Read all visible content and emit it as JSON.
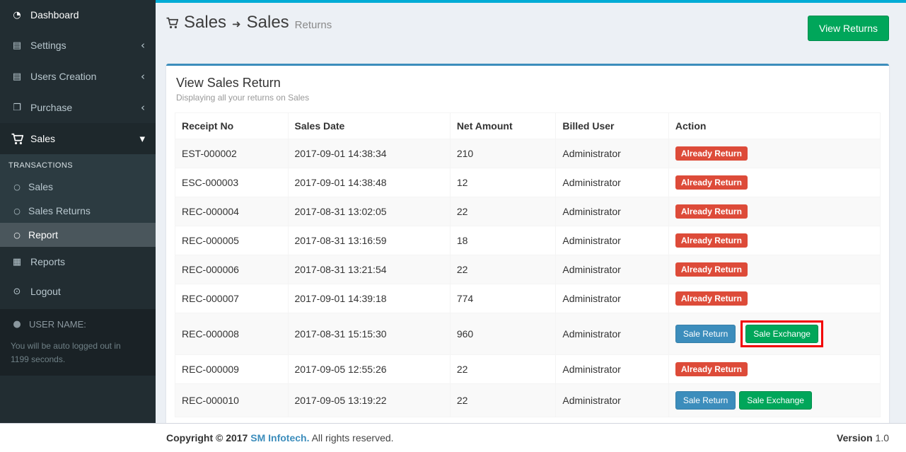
{
  "header": {
    "breadcrumb": {
      "section": "Sales",
      "arrow": "➜",
      "page": "Sales",
      "sub": "Returns"
    },
    "view_returns_button": "View Returns"
  },
  "panel": {
    "title": "View Sales Return",
    "subtitle": "Displaying all your returns on Sales"
  },
  "table": {
    "columns": [
      "Receipt No",
      "Sales Date",
      "Net Amount",
      "Billed User",
      "Action"
    ],
    "action_labels": {
      "already": "Already Return",
      "sale_return": "Sale Return",
      "sale_exchange": "Sale Exchange"
    },
    "rows": [
      {
        "receipt": "EST-000002",
        "date": "2017-09-01 14:38:34",
        "amount": "210",
        "user": "Administrator",
        "action": "already"
      },
      {
        "receipt": "ESC-000003",
        "date": "2017-09-01 14:38:48",
        "amount": "12",
        "user": "Administrator",
        "action": "already"
      },
      {
        "receipt": "REC-000004",
        "date": "2017-08-31 13:02:05",
        "amount": "22",
        "user": "Administrator",
        "action": "already"
      },
      {
        "receipt": "REC-000005",
        "date": "2017-08-31 13:16:59",
        "amount": "18",
        "user": "Administrator",
        "action": "already"
      },
      {
        "receipt": "REC-000006",
        "date": "2017-08-31 13:21:54",
        "amount": "22",
        "user": "Administrator",
        "action": "already"
      },
      {
        "receipt": "REC-000007",
        "date": "2017-09-01 14:39:18",
        "amount": "774",
        "user": "Administrator",
        "action": "already"
      },
      {
        "receipt": "REC-000008",
        "date": "2017-08-31 15:15:30",
        "amount": "960",
        "user": "Administrator",
        "action": "both",
        "highlight_exchange": true
      },
      {
        "receipt": "REC-000009",
        "date": "2017-09-05 12:55:26",
        "amount": "22",
        "user": "Administrator",
        "action": "already"
      },
      {
        "receipt": "REC-000010",
        "date": "2017-09-05 13:19:22",
        "amount": "22",
        "user": "Administrator",
        "action": "both"
      }
    ]
  },
  "sidebar": {
    "items": [
      {
        "label": "Dashboard",
        "icon": "dashboard",
        "glyph": "◔"
      },
      {
        "label": "Settings",
        "icon": "settings",
        "glyph": "▤",
        "chevron": "‹"
      },
      {
        "label": "Users Creation",
        "icon": "users-creation",
        "glyph": "▤",
        "chevron": "‹"
      },
      {
        "label": "Purchase",
        "icon": "purchase",
        "glyph": "❐",
        "chevron": "‹"
      },
      {
        "label": "Sales",
        "icon": "sales-cart",
        "glyph": "",
        "chevron": "▾",
        "active": true
      }
    ],
    "section_label": "TRANSACTIONS",
    "subitems": [
      {
        "label": "Sales"
      },
      {
        "label": "Sales Returns"
      },
      {
        "label": "Report",
        "highlight": true
      }
    ],
    "bottom_items": [
      {
        "label": "Reports",
        "icon": "reports",
        "glyph": "▦"
      },
      {
        "label": "Logout",
        "icon": "logout",
        "glyph": "⊙"
      }
    ],
    "user_label": "USER NAME:",
    "logout_note_line1": "You will be auto logged out in",
    "logout_note_line2": "1199 seconds."
  },
  "footer": {
    "copyright_prefix": "Copyright © 2017",
    "brand": "SM Infotech.",
    "suffix": "All rights reserved.",
    "version_label": "Version",
    "version": "1.0"
  },
  "colors": {
    "topline": "#00acd6",
    "card_accent": "#3c8dbc",
    "green": "#00a65a",
    "blue": "#3c8dbc",
    "red_badge": "#dd4b39",
    "annotation_red": "#f20000"
  }
}
